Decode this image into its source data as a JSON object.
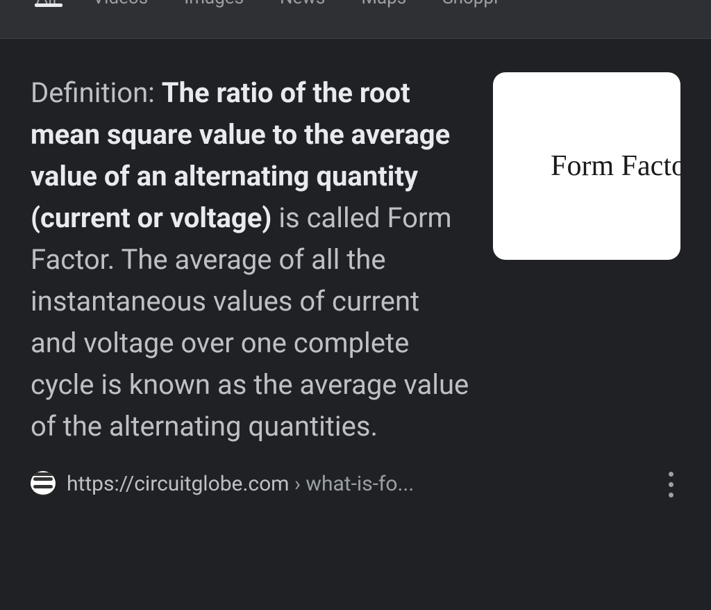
{
  "colors": {
    "page_bg": "#202124",
    "tabbar_bg": "#2f3034",
    "tab_text": "#9aa0a6",
    "active_underline": "#e8eaed",
    "body_text": "#bdc1c6",
    "bold_text": "#e8eaed",
    "thumb_bg": "#ffffff",
    "thumb_text": "#1a1a1a",
    "path_text": "#9aa0a6"
  },
  "tabs": {
    "items": [
      "All",
      "Videos",
      "Images",
      "News",
      "Maps",
      "Shoppi"
    ],
    "active_index": 0
  },
  "snippet": {
    "label": "Definition: ",
    "bold": "The ratio of the root mean square value to the average value of an alternating quantity (current or voltage)",
    "rest": " is called Form Factor. The average of all the instantaneous values of current and voltage over one complete cycle is known as the average value of the alternating quantities."
  },
  "thumbnail": {
    "text": "Form Facto"
  },
  "source": {
    "domain": "https://circuitglobe.com",
    "separator": " › ",
    "path": "what-is-fo..."
  }
}
